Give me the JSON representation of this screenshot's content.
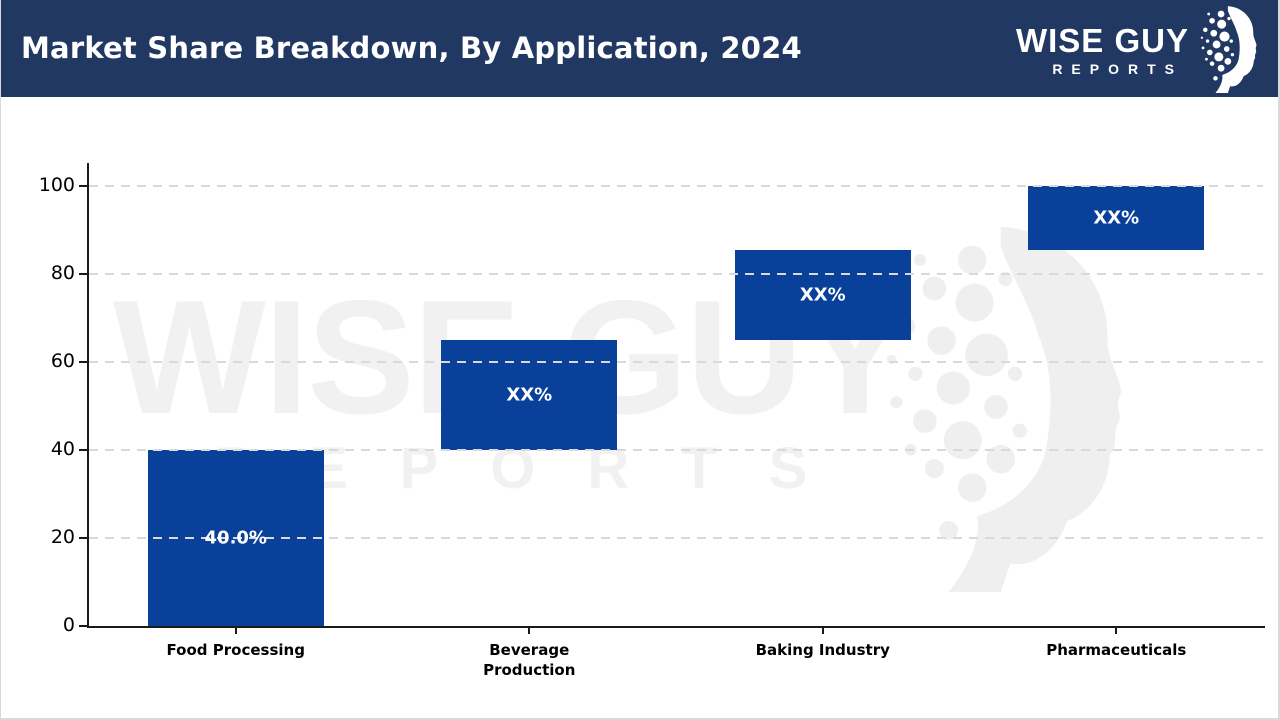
{
  "colors": {
    "header_bg": "#203862",
    "bar": "#09419a",
    "grid": "#d9d9d9",
    "watermark": "#f1f1f2",
    "axis": "#1a1a1a",
    "value_label": "#ffffff",
    "border": "#d9d9d9"
  },
  "header": {
    "title": "Market Share Breakdown, By Application, 2024",
    "logo": {
      "line1": "WISE GUY",
      "line2": "REPORTS"
    }
  },
  "watermark": {
    "line1": "WISE GUY",
    "line2": "REPORTS"
  },
  "chart_data": {
    "type": "bar",
    "subtype": "waterfall",
    "title": "Market Share Breakdown, By Application, 2024",
    "categories": [
      "Food Processing",
      "Beverage\nProduction",
      "Baking Industry",
      "Pharmaceuticals"
    ],
    "segments": [
      {
        "category": "Food Processing",
        "start": 0,
        "end": 40,
        "label": "40.0%"
      },
      {
        "category": "Beverage Production",
        "start": 40,
        "end": 65,
        "label": "XX%"
      },
      {
        "category": "Baking Industry",
        "start": 65,
        "end": 85.5,
        "label": "XX%"
      },
      {
        "category": "Pharmaceuticals",
        "start": 85.5,
        "end": 100,
        "label": "XX%"
      }
    ],
    "yticks": [
      0,
      20,
      40,
      60,
      80,
      100
    ],
    "ylim": [
      0,
      105
    ],
    "xlabel": "",
    "ylabel": "",
    "grid": "dashed-horizontal",
    "legend": false
  }
}
